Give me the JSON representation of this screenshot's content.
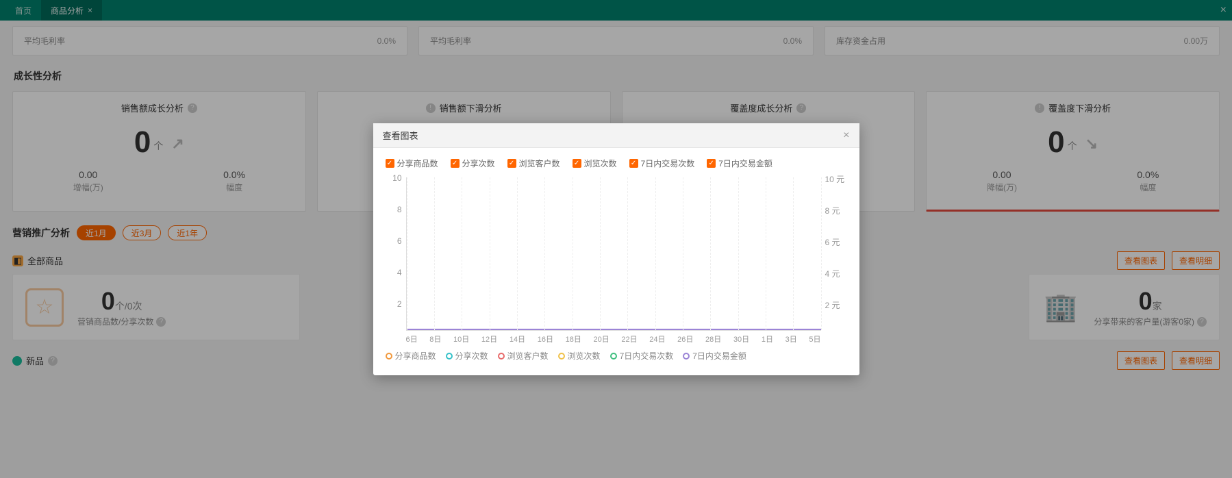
{
  "topbar": {
    "home": "首页",
    "active_tab": "商品分析"
  },
  "top_cards": [
    {
      "label": "平均毛利率",
      "value": "0.0%"
    },
    {
      "label": "平均毛利率",
      "value": "0.0%"
    },
    {
      "label": "库存资金占用",
      "value": "0.00万"
    }
  ],
  "growth": {
    "title": "成长性分析",
    "cards": [
      {
        "title": "销售额成长分析",
        "big": "0",
        "unit": "个",
        "trend": "up",
        "sub": [
          {
            "v": "0.00",
            "l": "增幅(万)"
          },
          {
            "v": "0.0%",
            "l": "幅度"
          }
        ],
        "info_left": false
      },
      {
        "title": "销售额下滑分析",
        "info_left": true
      },
      {
        "title": "覆盖度成长分析",
        "info_left": false
      },
      {
        "title": "覆盖度下滑分析",
        "big": "0",
        "unit": "个",
        "trend": "down",
        "sub": [
          {
            "v": "0.00",
            "l": "降幅(万)"
          },
          {
            "v": "0.0%",
            "l": "幅度"
          }
        ],
        "info_left": true,
        "red": true
      }
    ]
  },
  "yx": {
    "title": "营销推广分析",
    "pills": [
      {
        "t": "近1月",
        "active": true
      },
      {
        "t": "近3月",
        "active": false
      },
      {
        "t": "近1年",
        "active": false
      }
    ],
    "all_goods": "全部商品",
    "new_goods": "新品",
    "btn_chart": "查看图表",
    "btn_detail": "查看明细",
    "left_card": {
      "big": "0",
      "unit": "个/0次",
      "sub": "营销商品数/分享次数"
    },
    "right_card": {
      "big": "0",
      "unit": "家",
      "sub": "分享带来的客户量(游客0家)"
    }
  },
  "modal": {
    "title": "查看图表",
    "series": [
      {
        "name": "分享商品数",
        "color": "#f29a3f"
      },
      {
        "name": "分享次数",
        "color": "#36c2c9"
      },
      {
        "name": "浏览客户数",
        "color": "#e86b6b"
      },
      {
        "name": "浏览次数",
        "color": "#f0c24a"
      },
      {
        "name": "7日内交易次数",
        "color": "#3fbf7f"
      },
      {
        "name": "7日内交易金额",
        "color": "#9b84d6"
      }
    ],
    "y_left": [
      "10",
      "8",
      "6",
      "4",
      "2",
      ""
    ],
    "y_right": [
      "10 元",
      "8 元",
      "6 元",
      "4 元",
      "2 元",
      ""
    ],
    "x_labels": [
      "6日",
      "8日",
      "10日",
      "12日",
      "14日",
      "16日",
      "18日",
      "20日",
      "22日",
      "24日",
      "26日",
      "28日",
      "30日",
      "1日",
      "3日",
      "5日"
    ]
  }
}
